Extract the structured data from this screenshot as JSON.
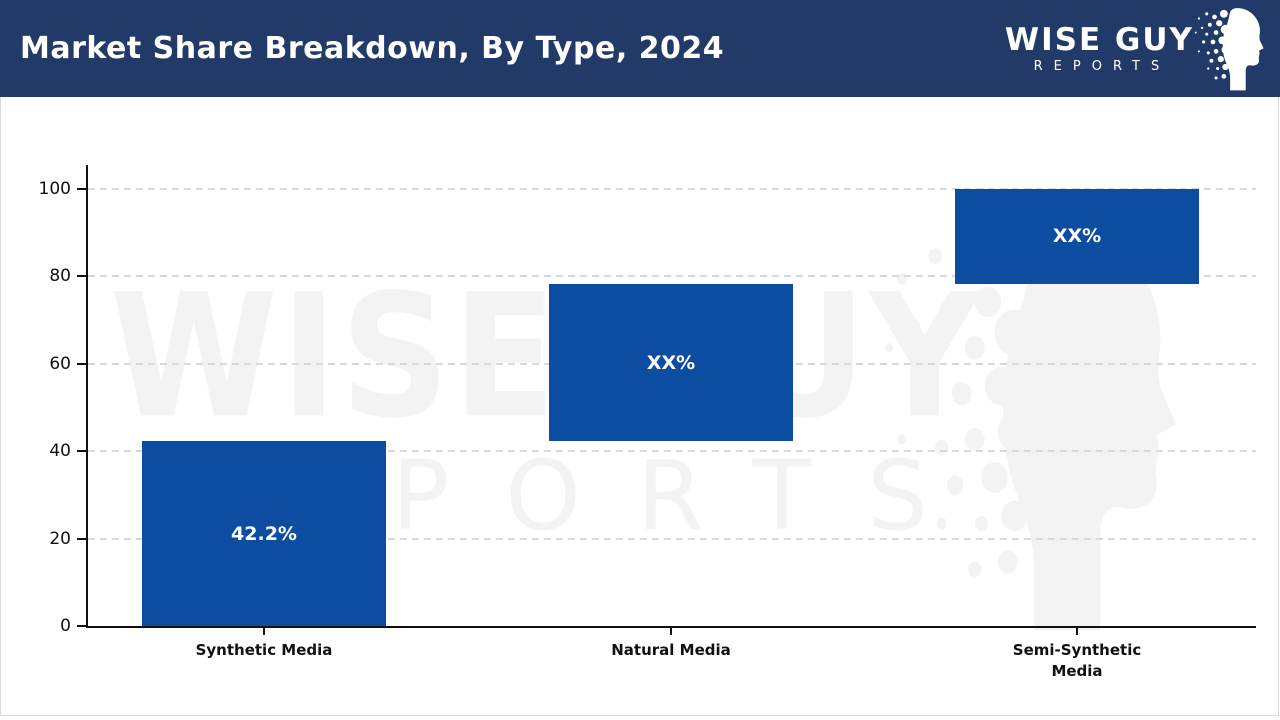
{
  "page": {
    "background": "#ffffff",
    "frame_color": "#d9d9d9"
  },
  "header": {
    "title": "Market Share Breakdown, By Type, 2024",
    "background": "#213a67",
    "logo": {
      "line1": "WISE GUY",
      "line2": "REPORTS",
      "face_icon": "dotted-head-profile",
      "color": "#ffffff"
    }
  },
  "watermark": {
    "line1": "WISE GUY",
    "line2": "REPORTS"
  },
  "chart_data": {
    "type": "bar",
    "subtype": "floating-waterfall",
    "title": "Market Share Breakdown, By Type, 2024",
    "categories": [
      "Synthetic Media",
      "Natural Media",
      "Semi-Synthetic Media"
    ],
    "categories_lines": [
      [
        "Synthetic Media"
      ],
      [
        "Natural Media"
      ],
      [
        "Semi-Synthetic",
        "Media"
      ]
    ],
    "segments": [
      {
        "category": "Synthetic Media",
        "start": 0,
        "end": 42.2,
        "label": "42.2%"
      },
      {
        "category": "Natural Media",
        "start": 42.2,
        "end": 78.2,
        "label": "XX%"
      },
      {
        "category": "Semi-Synthetic Media",
        "start": 78.2,
        "end": 100,
        "label": "XX%"
      }
    ],
    "xlabel": "",
    "ylabel": "",
    "ylim": [
      0,
      100
    ],
    "yticks": [
      0,
      20,
      40,
      60,
      80,
      100
    ],
    "grid": "horizontal-dashed",
    "legend": "none",
    "bar_color": "#0c4da2",
    "bar_label_color": "#ffffff",
    "axis_color": "#111111",
    "grid_color": "#d9d9d9"
  }
}
